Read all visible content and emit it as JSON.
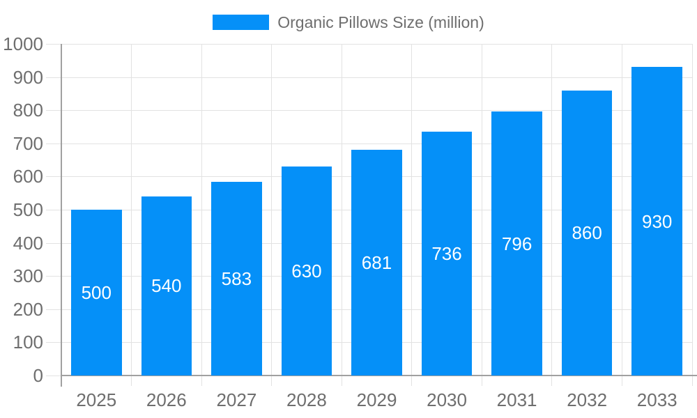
{
  "chart_data": {
    "type": "bar",
    "title": "Organic Pillows Size (million)",
    "legend_entries": [
      "Organic Pillows Size (million)"
    ],
    "legend_position": "top-center",
    "categories": [
      "2025",
      "2026",
      "2027",
      "2028",
      "2029",
      "2030",
      "2031",
      "2032",
      "2033"
    ],
    "values": [
      500,
      540,
      583,
      630,
      681,
      736,
      796,
      860,
      930
    ],
    "xlabel": "",
    "ylabel": "",
    "ylim": [
      0,
      1000
    ],
    "yticks": [
      0,
      100,
      200,
      300,
      400,
      500,
      600,
      700,
      800,
      900,
      1000
    ],
    "grid": true,
    "bar_labels_shown": true,
    "bar_label_position": "middle-of-bar"
  },
  "colors": {
    "bar": "#0590f8",
    "grid": "#e2e2e2",
    "axis": "#a0a0a0",
    "tick_text": "#6e6e6e",
    "value_label": "#ffffff"
  }
}
